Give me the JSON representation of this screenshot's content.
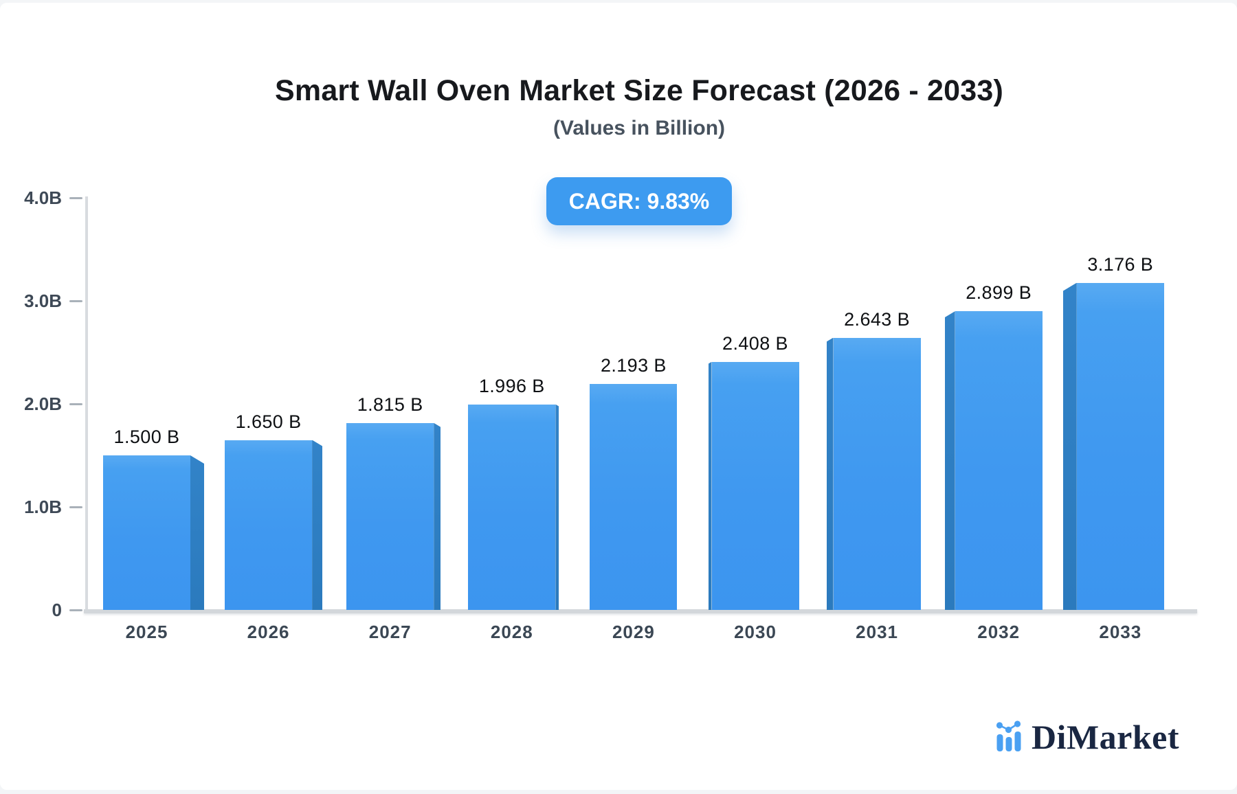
{
  "header": {
    "title": "Smart Wall Oven Market Size Forecast (2026 - 2033)",
    "subtitle": "(Values in Billion)",
    "badge_label": "CAGR: 9.83%"
  },
  "logo": {
    "brand": "DiMarket"
  },
  "colors": {
    "accent_blue": "#3d9bf0",
    "bar_front": "#3f98f0",
    "bar_side": "#2b7abd",
    "axis_gray": "#d5d9dd",
    "logo_navy": "#1a2742",
    "logo_icon_blue": "#4aa0f2"
  },
  "chart_data": {
    "type": "bar",
    "title": "Smart Wall Oven Market Size Forecast (2026 - 2033)",
    "subtitle": "(Values in Billion)",
    "annotation": "CAGR: 9.83%",
    "categories": [
      "2025",
      "2026",
      "2027",
      "2028",
      "2029",
      "2030",
      "2031",
      "2032",
      "2033"
    ],
    "values": [
      1.5,
      1.65,
      1.815,
      1.996,
      2.193,
      2.408,
      2.643,
      2.899,
      3.176
    ],
    "value_labels": [
      "1.500 B",
      "1.650 B",
      "1.815 B",
      "1.996 B",
      "2.193 B",
      "2.408 B",
      "2.643 B",
      "2.899 B",
      "3.176 B"
    ],
    "xlabel": "",
    "ylabel": "",
    "ylim": [
      0,
      4
    ],
    "y_ticks": [
      {
        "value": 0,
        "label": "0"
      },
      {
        "value": 1,
        "label": "1.0B"
      },
      {
        "value": 2,
        "label": "2.0B"
      },
      {
        "value": 3,
        "label": "3.0B"
      },
      {
        "value": 4,
        "label": "4.0B"
      }
    ],
    "grid": "off",
    "legend": "none",
    "style": "3d-perspective-bars-center-vanishing-point"
  }
}
